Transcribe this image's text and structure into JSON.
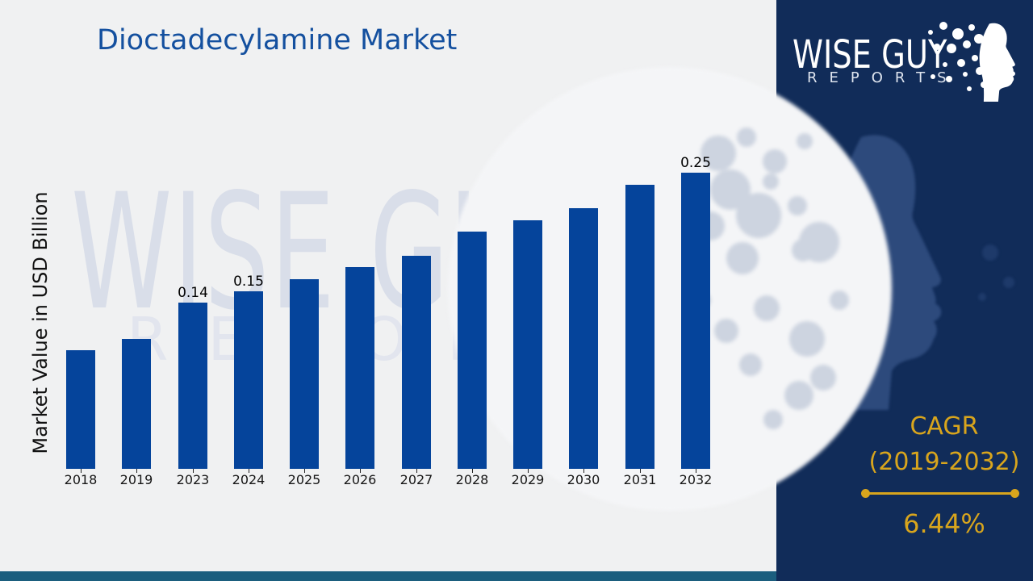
{
  "page": {
    "title": "Dioctadecylamine Market"
  },
  "watermark": {
    "brand": "WISE GUY",
    "sub": "REPORTS"
  },
  "brand_panel": {
    "logo_text": "WISE GUY",
    "logo_sub": "REPORTS",
    "cagr_label": "CAGR",
    "cagr_range": "(2019-2032)",
    "cagr_value": "6.44%"
  },
  "chart_data": {
    "type": "bar",
    "title": "Dioctadecylamine Market",
    "xlabel": "",
    "ylabel": "Market Value in USD Billion",
    "categories": [
      "2018",
      "2019",
      "2023",
      "2024",
      "2025",
      "2026",
      "2027",
      "2028",
      "2029",
      "2030",
      "2031",
      "2032"
    ],
    "values": [
      0.1,
      0.11,
      0.14,
      0.15,
      0.16,
      0.17,
      0.18,
      0.2,
      0.21,
      0.22,
      0.24,
      0.25
    ],
    "bar_labels": {
      "2023": "0.14",
      "2024": "0.15",
      "2032": "0.25"
    },
    "ylim": [
      0,
      0.27
    ],
    "grid": false,
    "legend": null,
    "bar_color": "#05449b"
  },
  "colors": {
    "background": "#f0f1f2",
    "bar_blue": "#05449b",
    "title_blue": "#14509f",
    "navy_panel": "#112c59",
    "accent_gold": "#d8a51d",
    "teal_strip": "#1b5e7e",
    "watermark_gray": "#d9dee9"
  }
}
